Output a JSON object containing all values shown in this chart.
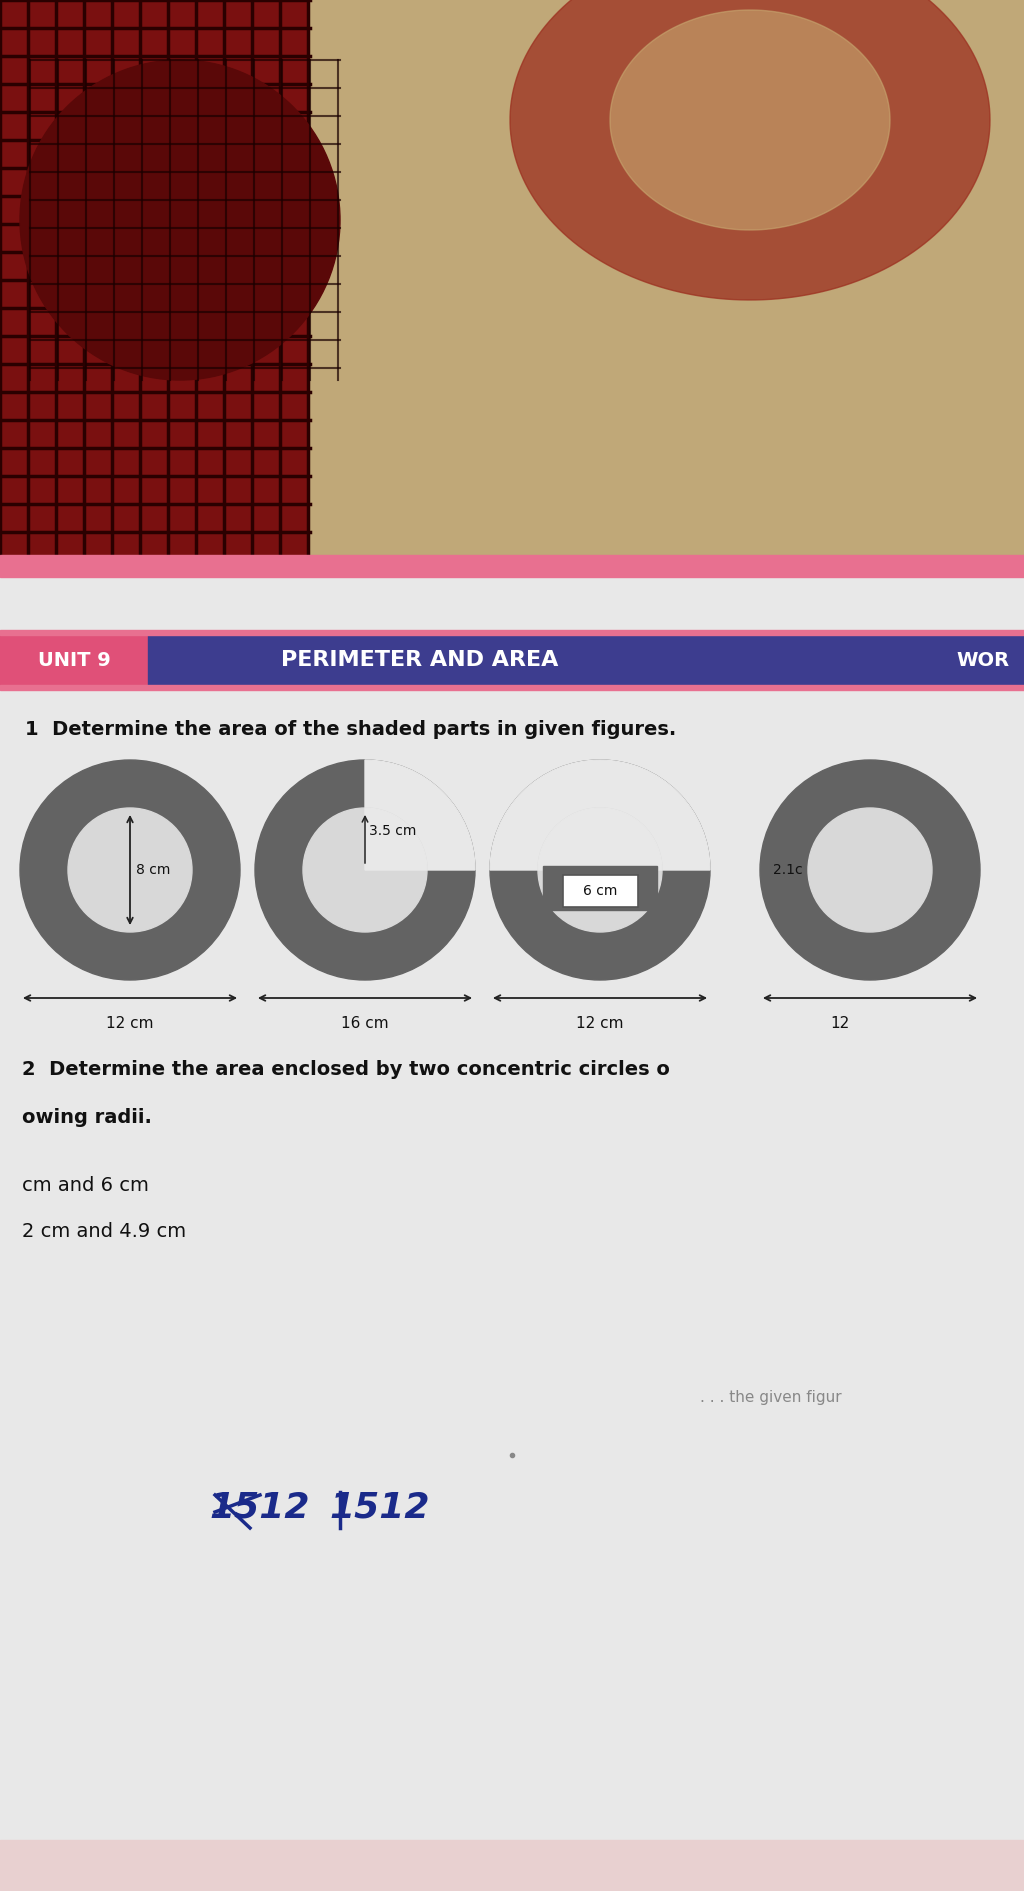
{
  "bg_page_color": "#dcdcdc",
  "header_bg_color": "#3d3d8f",
  "header_accent_color": "#e05080",
  "header_text": "PERIMETER AND AREA",
  "header_unit": "UNIT 9",
  "header_right": "WOR",
  "question1_text": "1  Determine the area of the shaded parts in given figures.",
  "question2_line1": "2  Determine the area enclosed by two concentric circles o",
  "question2_line2": "owing radii.",
  "question2_a": "cm and 6 cm",
  "question2_b": "2 cm and 4.9 cm",
  "circle_shading_color": "#636363",
  "circle_inner_bg": "#c8c8c8",
  "page_bg": "#e0e0e0",
  "photo_top_bg": "#b8a080",
  "photo_left_red": "#8b1a1a",
  "handwriting_color": "#1a2a8a",
  "extra_text": ". . . the given figur",
  "note_text": "1512   1512"
}
